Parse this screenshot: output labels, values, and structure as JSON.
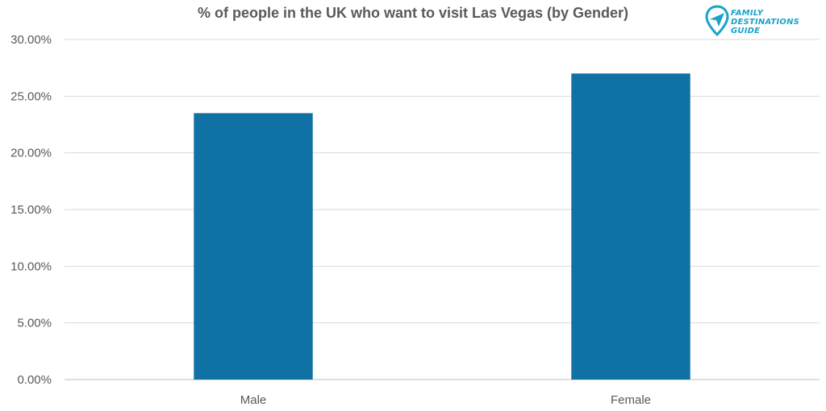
{
  "chart_data": {
    "type": "bar",
    "title": "% of people in the  UK who want to visit Las Vegas (by Gender)",
    "categories": [
      "Male",
      "Female"
    ],
    "values": [
      23.5,
      27.0
    ],
    "ylim": [
      0,
      30
    ],
    "yticks": [
      "0.00%",
      "5.00%",
      "10.00%",
      "15.00%",
      "20.00%",
      "25.00%",
      "30.00%"
    ],
    "xlabel": "",
    "ylabel": "",
    "grid": true,
    "bar_color": "#1071a5"
  },
  "logo": {
    "line1": "FAMILY",
    "line2": "DESTINATIONS",
    "line3": "GUIDE",
    "color": "#1aa3c9"
  }
}
